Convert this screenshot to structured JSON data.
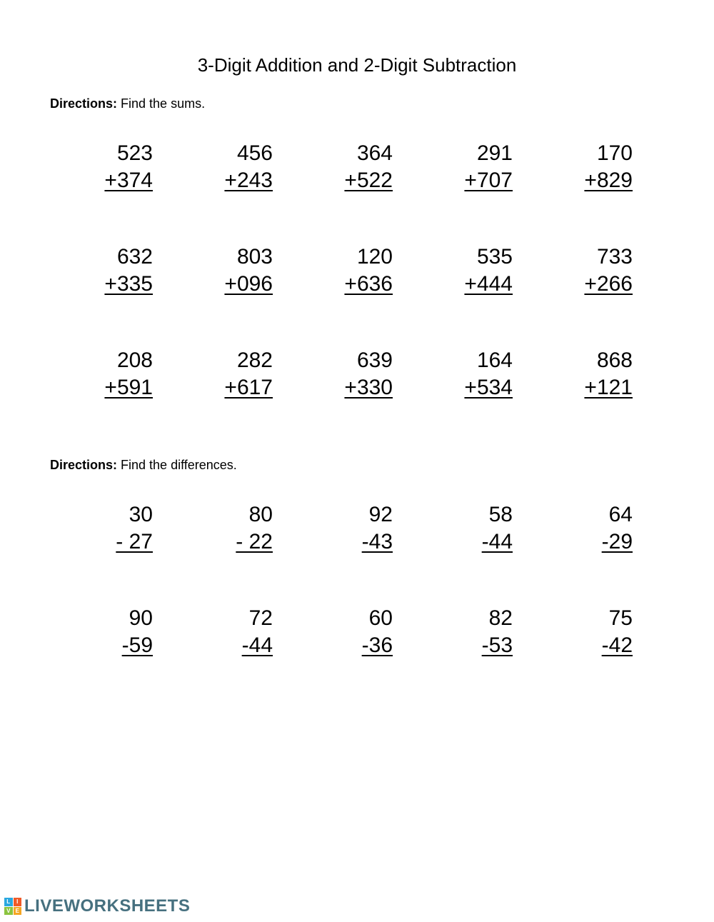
{
  "title": "3-Digit Addition and 2-Digit Subtraction",
  "section1": {
    "directions_label": "Directions:",
    "directions_text": " Find the sums.",
    "operator": "+",
    "problems": [
      {
        "a": "523",
        "b": "374"
      },
      {
        "a": "456",
        "b": "243"
      },
      {
        "a": "364",
        "b": "522"
      },
      {
        "a": "291",
        "b": "707"
      },
      {
        "a": "170",
        "b": "829"
      },
      {
        "a": "632",
        "b": "335"
      },
      {
        "a": "803",
        "b": "096"
      },
      {
        "a": "120",
        "b": "636"
      },
      {
        "a": "535",
        "b": "444"
      },
      {
        "a": "733",
        "b": "266"
      },
      {
        "a": "208",
        "b": "591"
      },
      {
        "a": "282",
        "b": "617"
      },
      {
        "a": "639",
        "b": "330"
      },
      {
        "a": "164",
        "b": "534"
      },
      {
        "a": "868",
        "b": "121"
      }
    ]
  },
  "section2": {
    "directions_label": "Directions:",
    "directions_text": " Find the differences.",
    "problems": [
      {
        "a": "30",
        "b": "- 27"
      },
      {
        "a": "80",
        "b": "- 22"
      },
      {
        "a": "92",
        "b": "-43"
      },
      {
        "a": "58",
        "b": "-44"
      },
      {
        "a": "64",
        "b": "-29"
      },
      {
        "a": "90",
        "b": "-59"
      },
      {
        "a": "72",
        "b": "-44"
      },
      {
        "a": "60",
        "b": "-36"
      },
      {
        "a": "82",
        "b": "-53"
      },
      {
        "a": "75",
        "b": "-42"
      }
    ]
  },
  "watermark": {
    "text": "LIVEWORKSHEETS",
    "badge": [
      "L",
      "I",
      "V",
      "E"
    ],
    "badge_colors": [
      "#2aa8e0",
      "#f05a28",
      "#8bc43f",
      "#f5a623"
    ],
    "text_color": "#46707f"
  },
  "style": {
    "background_color": "#ffffff",
    "text_color": "#000000",
    "font_family": "Comic Sans MS",
    "title_fontsize": 26,
    "directions_fontsize": 18,
    "problem_fontsize": 30,
    "columns": 5,
    "addition_rows": 3,
    "subtraction_rows": 2,
    "underline_thickness": 2
  }
}
